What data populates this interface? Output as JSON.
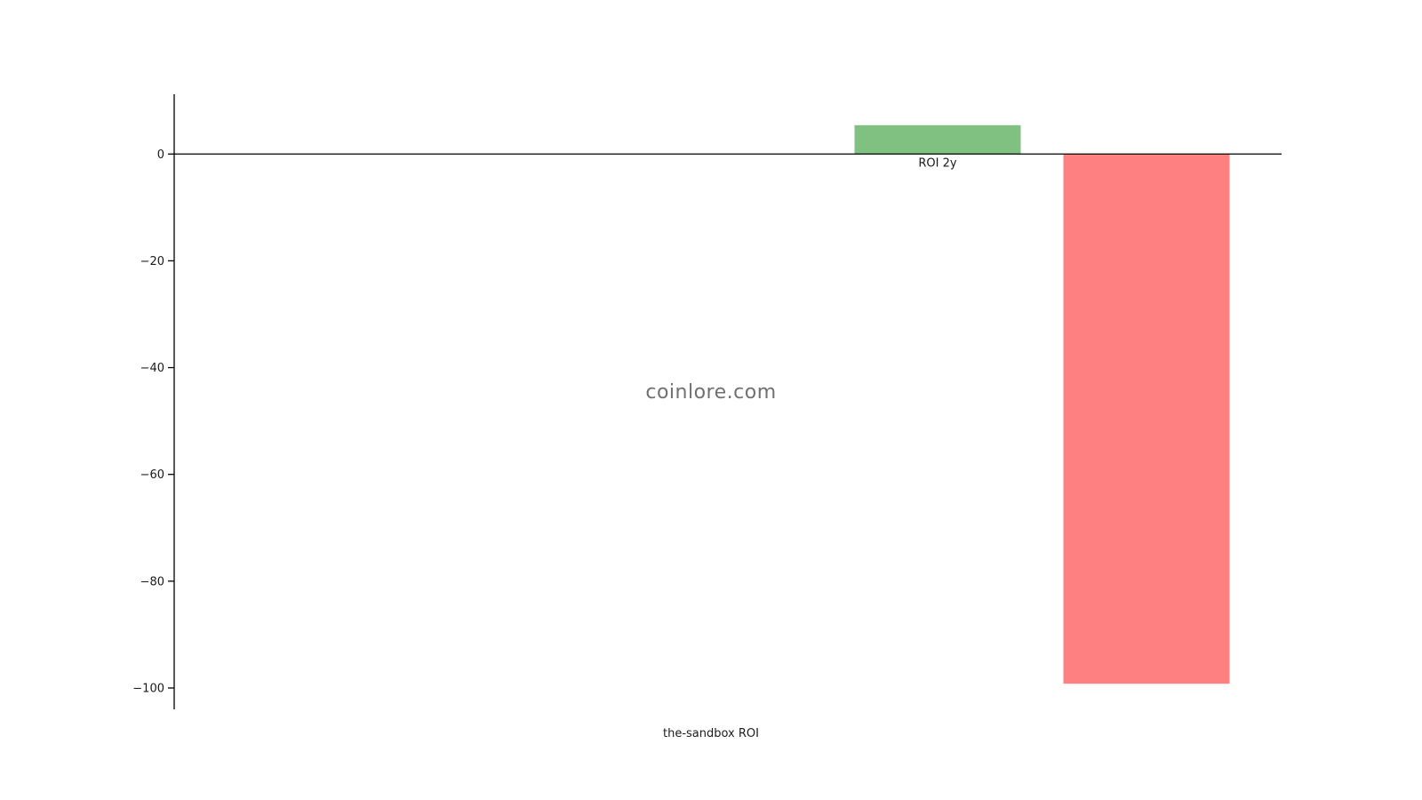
{
  "page": {
    "background": "#ffffff"
  },
  "chart_data": {
    "type": "bar",
    "bottom_title": "the-sandbox ROI",
    "watermark": "coinlore.com",
    "categories": [
      "ROI 2y",
      ""
    ],
    "series": [
      {
        "name": "the-sandbox ROI",
        "values": [
          5.4,
          -99.2
        ]
      }
    ],
    "bar_colors": [
      "#80c080",
      "#ff8080"
    ],
    "yticks": [
      {
        "value": 0,
        "label": "0"
      },
      {
        "value": -20,
        "label": "−20"
      },
      {
        "value": -40,
        "label": "−40"
      },
      {
        "value": -60,
        "label": "−60"
      },
      {
        "value": -80,
        "label": "−80"
      },
      {
        "value": -100,
        "label": "−100"
      }
    ],
    "ylim": [
      -104,
      11.2
    ],
    "xlabel": "",
    "ylabel": "",
    "grid": false,
    "legend": null,
    "axis_color": "#000000",
    "text_color": "#1a1a1a",
    "watermark_color": "#707070",
    "zero_line": true
  }
}
